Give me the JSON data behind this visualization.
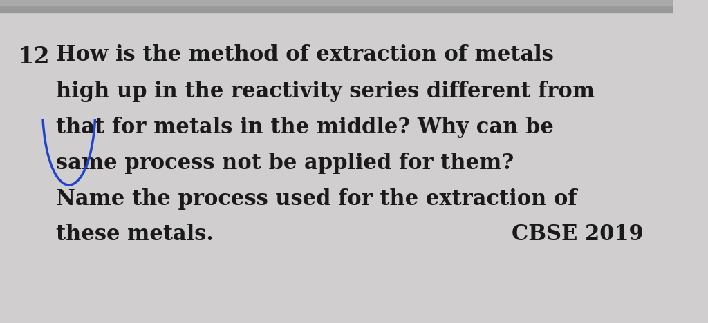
{
  "bg_color": "#d0cece",
  "text_color": "#1a1a1a",
  "question_number": "12",
  "line1": "How is the method of extraction of metals",
  "line2": "high up in the reactivity series different from",
  "line3": "that for metals in the middle? Why can be",
  "line4": "same process not be applied for them?",
  "line5": "Name the process used for the extraction of",
  "line6": "these metals.",
  "cbse_tag": "CBSE 2019",
  "font_size_main": 22,
  "font_size_num": 24,
  "top_bar_color": "#888888"
}
